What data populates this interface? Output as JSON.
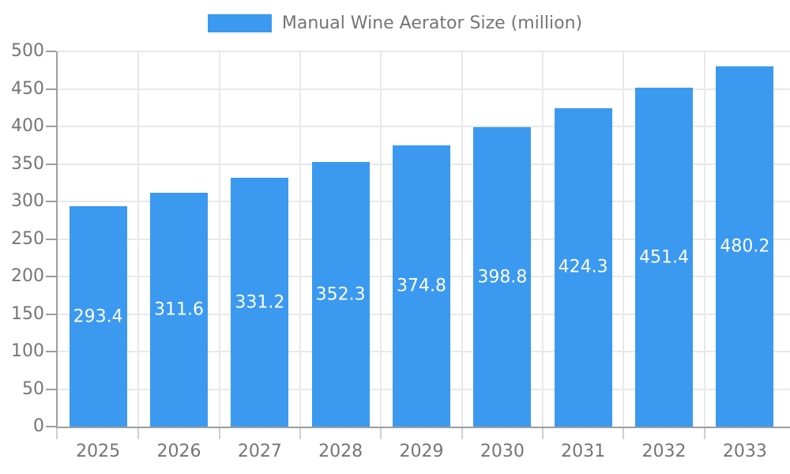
{
  "chart_data": {
    "type": "bar",
    "title": "",
    "series_name": "Manual Wine Aerator Size (million)",
    "categories": [
      "2025",
      "2026",
      "2027",
      "2028",
      "2029",
      "2030",
      "2031",
      "2032",
      "2033"
    ],
    "values": [
      293.4,
      311.6,
      331.2,
      352.3,
      374.8,
      398.8,
      424.3,
      451.4,
      480.2
    ],
    "ylim": [
      0,
      500
    ],
    "yticks": [
      0,
      50,
      100,
      150,
      200,
      250,
      300,
      350,
      400,
      450,
      500
    ],
    "grid": true,
    "legend_position": "top-center",
    "value_labels_inside_bars": true,
    "colors": {
      "bar": "#3B99F0",
      "bar_label": "#FFFFFF",
      "axis": "#9E9E9E",
      "grid": "#E8E8E8",
      "xtick": "#CFCFCF",
      "tick_label": "#757575",
      "legend_text": "#757575",
      "background": "#FFFFFF"
    }
  }
}
